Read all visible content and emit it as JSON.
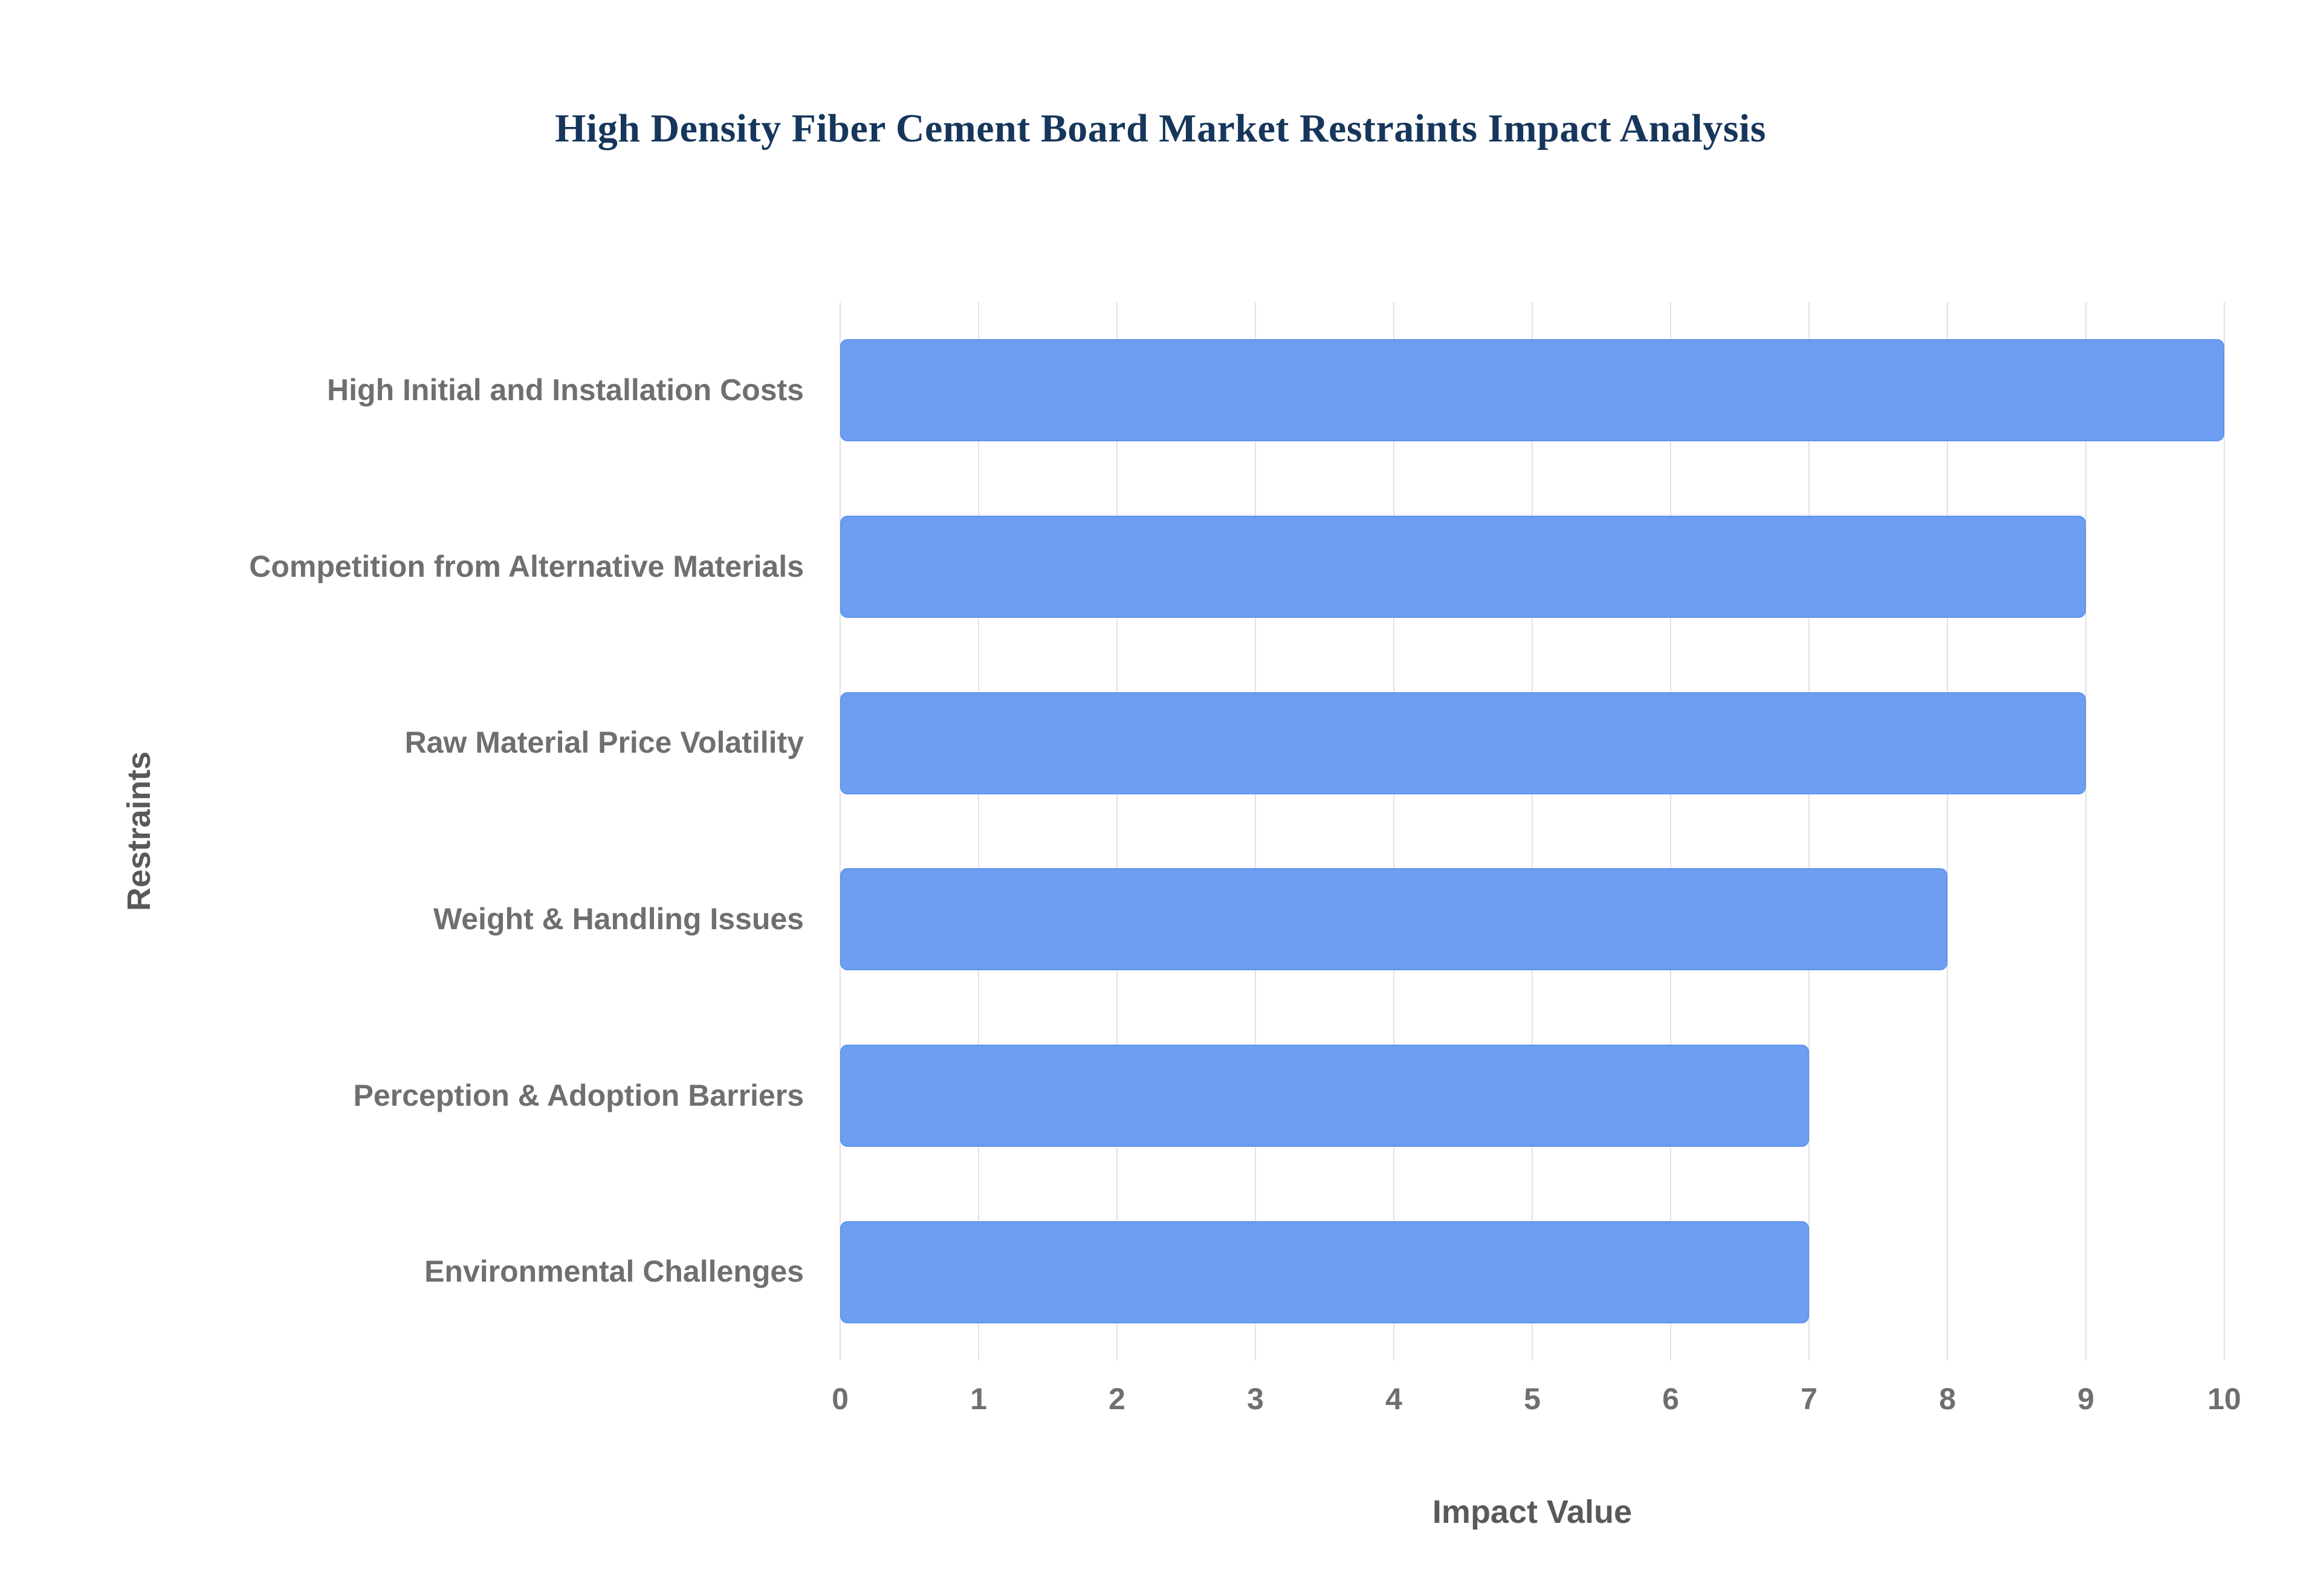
{
  "title": "High Density Fiber Cement Board Market Restraints Impact Analysis",
  "chart_data": {
    "type": "bar",
    "orientation": "horizontal",
    "title": "High Density Fiber Cement Board Market Restraints Impact Analysis",
    "categories": [
      "High Initial and Installation Costs",
      "Competition from Alternative Materials",
      "Raw Material Price Volatility",
      "Weight & Handling Issues",
      "Perception & Adoption Barriers",
      "Environmental Challenges"
    ],
    "values": [
      10,
      9,
      9,
      8,
      7,
      7
    ],
    "xlabel": "Impact Value",
    "ylabel": "Restraints",
    "xlim": [
      0,
      10
    ],
    "xticks": [
      0,
      1,
      2,
      3,
      4,
      5,
      6,
      7,
      8,
      9,
      10
    ],
    "grid": "vertical",
    "legend": "none",
    "bar_color": "#6d9ef1",
    "gridline_color": "#e2e2e2",
    "title_color": "#16365c",
    "label_color": "#6f6f6f"
  }
}
